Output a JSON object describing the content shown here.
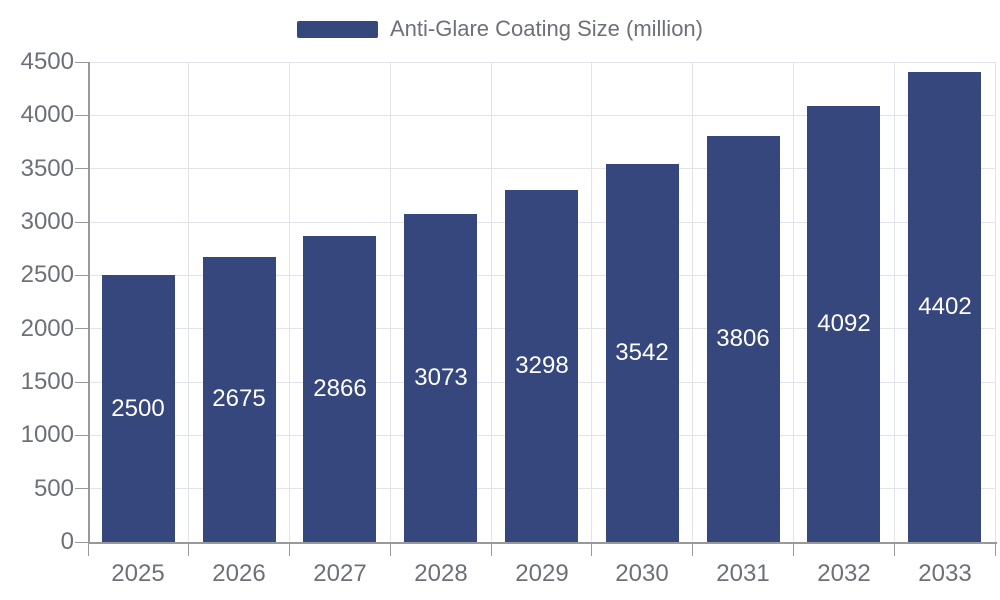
{
  "legend": {
    "label": "Anti-Glare Coating Size (million)"
  },
  "chart_data": {
    "type": "bar",
    "title": "",
    "categories": [
      "2025",
      "2026",
      "2027",
      "2028",
      "2029",
      "2030",
      "2031",
      "2032",
      "2033"
    ],
    "series": [
      {
        "name": "Anti-Glare Coating Size (million)",
        "values": [
          2500,
          2675,
          2866,
          3073,
          3298,
          3542,
          3806,
          4092,
          4402
        ]
      }
    ],
    "xlabel": "",
    "ylabel": "",
    "ylim": [
      0,
      4500
    ],
    "yticks": [
      0,
      500,
      1000,
      1500,
      2000,
      2500,
      3000,
      3500,
      4000,
      4500
    ],
    "grid": true,
    "legend_position": "top",
    "value_label_position": "inside-center",
    "colors": {
      "bar": "#36477D",
      "bar_label": "#FFFFFF",
      "axis_label": "#6E7079",
      "legend_label": "#6E7079",
      "axis_line": "#999999",
      "grid_line": "#E2E4EA",
      "background": "#FFFFFF"
    }
  }
}
